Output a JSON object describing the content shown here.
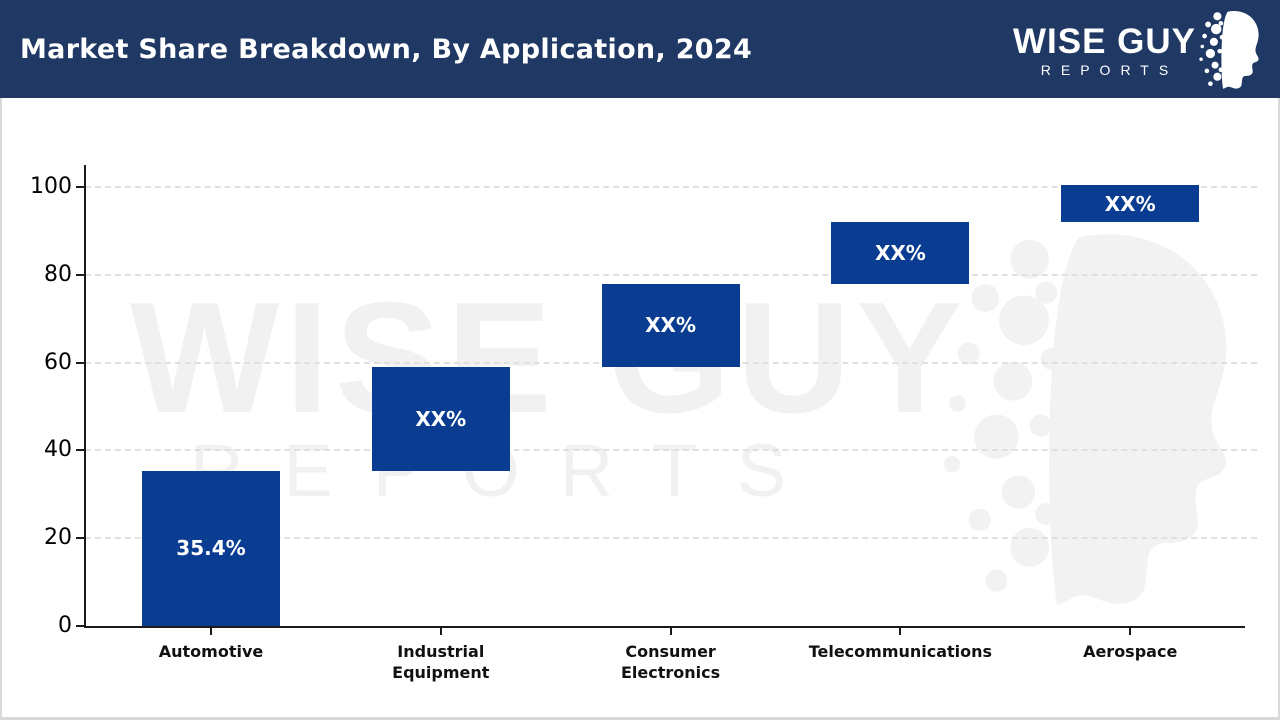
{
  "header": {
    "title": "Market Share Breakdown, By Application, 2024",
    "bg_color": "#1f3864",
    "logo": {
      "line1": "WISE GUY",
      "line2": "REPORTS"
    }
  },
  "watermark": {
    "line1": "WISE GUY",
    "line2": "REPORTS"
  },
  "chart_data": {
    "type": "bar",
    "subtype": "waterfall",
    "title": "Market Share Breakdown, By Application, 2024",
    "categories": [
      "Automotive",
      "Industrial\nEquipment",
      "Consumer\nElectronics",
      "Telecommunications",
      "Aerospace"
    ],
    "segments": [
      {
        "category": "Automotive",
        "start": 0,
        "end": 35.4,
        "label": "35.4%"
      },
      {
        "category": "Industrial Equipment",
        "start": 35.4,
        "end": 59,
        "label": "XX%"
      },
      {
        "category": "Consumer Electronics",
        "start": 59,
        "end": 78,
        "label": "XX%"
      },
      {
        "category": "Telecommunications",
        "start": 78,
        "end": 92,
        "label": "XX%"
      },
      {
        "category": "Aerospace",
        "start": 92,
        "end": 100.4,
        "label": "XX%"
      }
    ],
    "yticks": [
      0,
      20,
      40,
      60,
      80,
      100
    ],
    "ylim": [
      0,
      105
    ],
    "xlabel": "",
    "ylabel": "",
    "grid": "horizontal-dashed",
    "legend": "none",
    "bar_color": "#0a3d91",
    "bar_label_color": "#ffffff"
  }
}
